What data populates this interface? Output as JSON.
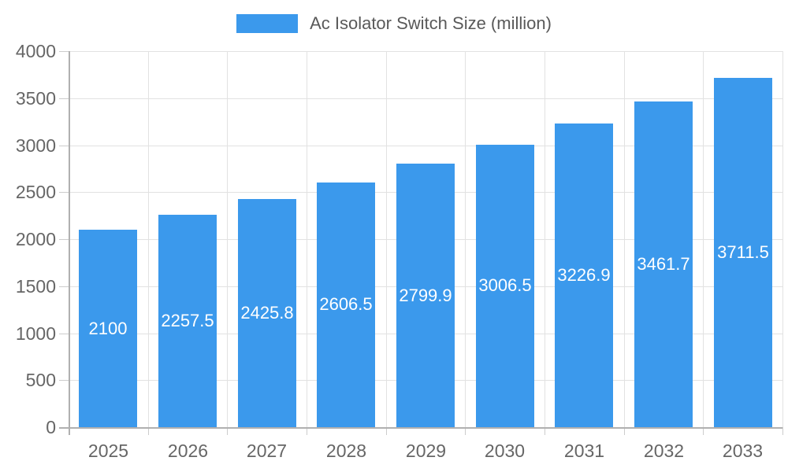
{
  "legend": {
    "label": "Ac Isolator Switch Size (million)"
  },
  "colors": {
    "bar": "#3B99EC",
    "bar_value_label": "#ffffff",
    "axis_label": "#666666",
    "legend_text": "#595959",
    "gridline": "#e2e2e2",
    "axis_line": "#b0b0b0",
    "background": "#ffffff"
  },
  "chart_data": {
    "type": "bar",
    "title": "Ac Isolator Switch Size (million)",
    "categories": [
      "2025",
      "2026",
      "2027",
      "2028",
      "2029",
      "2030",
      "2031",
      "2032",
      "2033"
    ],
    "series": [
      {
        "name": "Ac Isolator Switch Size (million)",
        "values": [
          2100,
          2257.5,
          2425.8,
          2606.5,
          2799.9,
          3006.5,
          3226.9,
          3461.7,
          3711.5
        ]
      }
    ],
    "value_labels": [
      "2100",
      "2257.5",
      "2425.8",
      "2606.5",
      "2799.9",
      "3006.5",
      "3226.9",
      "3461.7",
      "3711.5"
    ],
    "value_label_position": "inside-center",
    "xlabel": "",
    "ylabel": "",
    "ylim": [
      0,
      4000
    ],
    "yticks": [
      0,
      500,
      1000,
      1500,
      2000,
      2500,
      3000,
      3500,
      4000
    ],
    "grid": true,
    "legend_position": "top-center",
    "bar_color": "#3B99EC"
  }
}
